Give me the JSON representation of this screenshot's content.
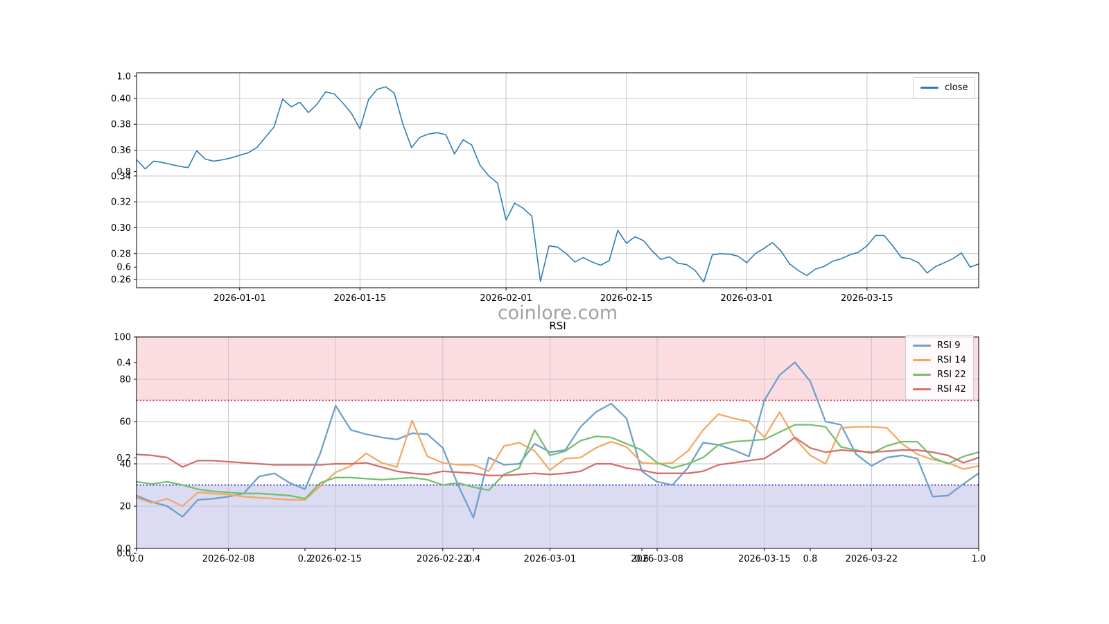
{
  "watermark": "coinlore.com",
  "figure": {
    "bg": "#ffffff",
    "grid_color": "#c6c6c6",
    "spine_color": "#000000",
    "text_color": "#000000",
    "watermark_color": "#7d7d7d"
  },
  "overlay_axis": {
    "y_ticks": [
      "1.0",
      "0.8",
      "0.6",
      "0.4",
      "0.2",
      "0.0"
    ],
    "x_ticks": [
      "0.0",
      "0.2",
      "0.4",
      "0.6",
      "0.8",
      "1.0"
    ]
  },
  "chart_data": [
    {
      "type": "line",
      "title": "",
      "legend": [
        "close"
      ],
      "legend_position": "upper right",
      "grid": true,
      "x_start_date": "2025-12-20",
      "x_interval": "daily",
      "x_tick_labels": [
        "2026-01-01",
        "2026-01-15",
        "2026-02-01",
        "2026-02-15",
        "2026-03-01",
        "2026-03-15"
      ],
      "x_tick_indices": [
        12,
        26,
        43,
        57,
        71,
        85
      ],
      "y_tick_labels": [
        "0.26",
        "0.28",
        "0.30",
        "0.32",
        "0.34",
        "0.36",
        "0.38",
        "0.40"
      ],
      "y_ticks": [
        0.26,
        0.28,
        0.3,
        0.32,
        0.34,
        0.36,
        0.38,
        0.4
      ],
      "ylim": [
        0.2536,
        0.4198
      ],
      "series": [
        {
          "name": "close",
          "color": "#2e7eb3",
          "values": [
            0.3525,
            0.3455,
            0.3515,
            0.3505,
            0.349,
            0.3475,
            0.3465,
            0.3595,
            0.353,
            0.3515,
            0.3525,
            0.354,
            0.356,
            0.358,
            0.362,
            0.37,
            0.378,
            0.3995,
            0.3935,
            0.397,
            0.389,
            0.3955,
            0.405,
            0.4035,
            0.3965,
            0.3885,
            0.3765,
            0.399,
            0.407,
            0.409,
            0.404,
            0.38,
            0.362,
            0.37,
            0.3725,
            0.3735,
            0.372,
            0.357,
            0.368,
            0.364,
            0.348,
            0.34,
            0.3345,
            0.306,
            0.319,
            0.315,
            0.309,
            0.2585,
            0.286,
            0.285,
            0.28,
            0.2735,
            0.277,
            0.2735,
            0.271,
            0.2745,
            0.298,
            0.288,
            0.293,
            0.29,
            0.282,
            0.2755,
            0.2775,
            0.2725,
            0.2715,
            0.267,
            0.258,
            0.279,
            0.28,
            0.2795,
            0.278,
            0.273,
            0.28,
            0.284,
            0.2885,
            0.282,
            0.272,
            0.267,
            0.263,
            0.268,
            0.27,
            0.274,
            0.276,
            0.279,
            0.281,
            0.286,
            0.294,
            0.294,
            0.286,
            0.277,
            0.276,
            0.273,
            0.265,
            0.27,
            0.273,
            0.276,
            0.2805,
            0.2695,
            0.272
          ]
        }
      ]
    },
    {
      "type": "line",
      "title": "RSI",
      "legend": [
        "RSI 9",
        "RSI 14",
        "RSI 22",
        "RSI 42"
      ],
      "legend_position": "upper right",
      "grid": true,
      "x_start_date": "2026-02-02",
      "x_interval": "daily",
      "x_tick_labels": [
        "2026-02-08",
        "2026-02-15",
        "2026-02-22",
        "2026-03-01",
        "2026-03-08",
        "2026-03-15",
        "2026-03-22"
      ],
      "x_tick_indices": [
        6,
        13,
        20,
        27,
        34,
        41,
        48
      ],
      "y_tick_labels": [
        "100",
        "80",
        "60",
        "40",
        "20",
        "0.0"
      ],
      "y_ticks": [
        100,
        80,
        60,
        40,
        20,
        0
      ],
      "ylim": [
        0,
        100
      ],
      "bands": [
        {
          "from": 70,
          "to": 100,
          "color": "#fbdce1",
          "meaning": "overbought"
        },
        {
          "from": 0,
          "to": 30,
          "color": "#dcdbf4",
          "meaning": "oversold"
        }
      ],
      "hlines": [
        {
          "y": 70,
          "color": "#cf1d3d",
          "style": "dotted"
        },
        {
          "y": 30,
          "color": "#1c1cae",
          "style": "dotted"
        }
      ],
      "series": [
        {
          "name": "RSI 9",
          "color": "#6fa0ca",
          "values": [
            25,
            22,
            20,
            15,
            23,
            23.5,
            24.5,
            26,
            34,
            35.5,
            31,
            28,
            45,
            67.5,
            56,
            54,
            52.5,
            51.5,
            54.5,
            54,
            47.5,
            30,
            14.5,
            43,
            39.5,
            40,
            49.5,
            45.5,
            46.5,
            57.5,
            64.5,
            68.5,
            61.5,
            36.5,
            31.5,
            30,
            38,
            50,
            49,
            46.5,
            43.5,
            70,
            82,
            88,
            79,
            60,
            58.5,
            44.5,
            39,
            43,
            44,
            42.5,
            24.5,
            25,
            30.5,
            35.5
          ]
        },
        {
          "name": "RSI 14",
          "color": "#f3a963",
          "values": [
            24,
            21.5,
            23.5,
            20,
            26.5,
            26,
            25.5,
            24.5,
            24,
            23.5,
            23,
            23,
            29.5,
            36,
            39,
            45,
            40.5,
            38.5,
            60.5,
            43.5,
            40.5,
            39.5,
            39.5,
            36.5,
            48.5,
            50,
            46,
            37,
            42.5,
            43,
            47.5,
            50.5,
            48,
            40.5,
            40,
            40.5,
            46,
            56,
            63.5,
            61.5,
            60,
            52.5,
            64.5,
            52,
            44,
            40,
            57,
            57.5,
            57.5,
            57,
            49.5,
            44.5,
            42,
            40.5,
            37.5,
            39
          ]
        },
        {
          "name": "RSI 22",
          "color": "#74c06f",
          "values": [
            31.5,
            30.5,
            31.5,
            30,
            28,
            27,
            26.5,
            26,
            26,
            25.5,
            25,
            23.5,
            31,
            33.5,
            33.5,
            33,
            32.5,
            33,
            33.5,
            32.5,
            30,
            31,
            29,
            27.5,
            35,
            38,
            56,
            44,
            46,
            51,
            53,
            52.5,
            49.5,
            46.5,
            40.5,
            38,
            40,
            43,
            49,
            50.5,
            51,
            51.5,
            55,
            58.5,
            58.5,
            57.5,
            48,
            46.5,
            45,
            48.5,
            50.5,
            50.5,
            43,
            40,
            43.5,
            45.5
          ]
        },
        {
          "name": "RSI 42",
          "color": "#d66f6f",
          "values": [
            44.5,
            44,
            43,
            38.5,
            41.5,
            41.5,
            41,
            40.5,
            40,
            39.5,
            39.5,
            39.5,
            39.5,
            40,
            40,
            40.5,
            38.5,
            36.5,
            35.5,
            35,
            36.5,
            36,
            35.5,
            34.5,
            34.5,
            35,
            35.5,
            35,
            35.5,
            36.5,
            40,
            40,
            38,
            37,
            35.5,
            35.5,
            35.5,
            36.5,
            39.5,
            40.5,
            41.5,
            42.5,
            47,
            52.5,
            47.5,
            45.5,
            46.5,
            46,
            45.5,
            46,
            46.5,
            46.5,
            45.5,
            44,
            40.5,
            43
          ]
        }
      ]
    }
  ]
}
